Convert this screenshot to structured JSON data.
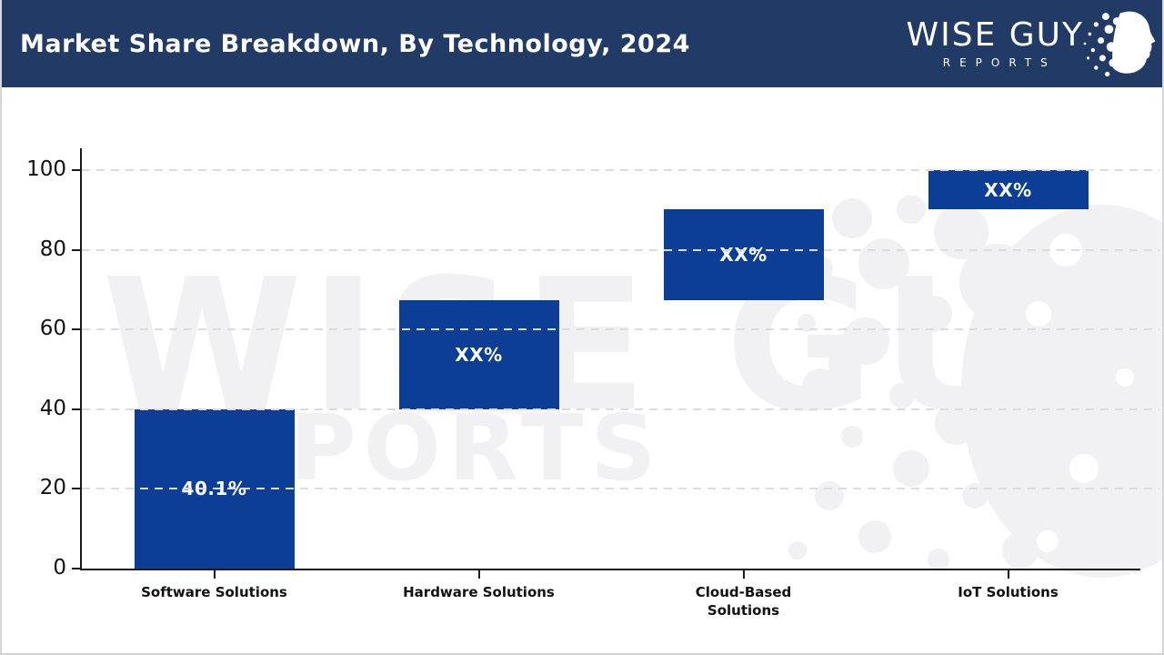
{
  "header": {
    "title": "Market Share Breakdown, By Technology, 2024",
    "logo": {
      "name": "Wise Guy Reports",
      "line1": "WISE GUY",
      "line2": "REPORTS"
    }
  },
  "watermark": {
    "line1": "WISE GUY",
    "line2": "REPORTS"
  },
  "chart_data": {
    "type": "bar",
    "subtype": "floating-waterfall",
    "title": "Market Share Breakdown, By Technology, 2024",
    "categories": [
      "Software Solutions",
      "Hardware Solutions",
      "Cloud-Based Solutions",
      "IoT Solutions"
    ],
    "segments": [
      {
        "category": "Software Solutions",
        "start": 0,
        "end": 40.1,
        "label": "40.1%"
      },
      {
        "category": "Hardware Solutions",
        "start": 40.1,
        "end": 67.5,
        "label": "XX%"
      },
      {
        "category": "Cloud-Based Solutions",
        "start": 67.5,
        "end": 90.2,
        "label": "XX%"
      },
      {
        "category": "IoT Solutions",
        "start": 90.2,
        "end": 100,
        "label": "XX%"
      }
    ],
    "xlabel": "",
    "ylabel": "",
    "ylim": [
      0,
      105
    ],
    "yticks": [
      0,
      20,
      40,
      60,
      80,
      100
    ],
    "grid": "horizontal-dashed",
    "legend": "none",
    "bar_color": "#0C3E96",
    "value_label_color": "#FFFFFF"
  },
  "colors": {
    "header_bg": "#223A66",
    "bar": "#0C3E96",
    "grid": "#DCDCDC",
    "axis": "#1A1A1A",
    "watermark": "#F1F1F3",
    "page_border": "#D6D6D6"
  }
}
